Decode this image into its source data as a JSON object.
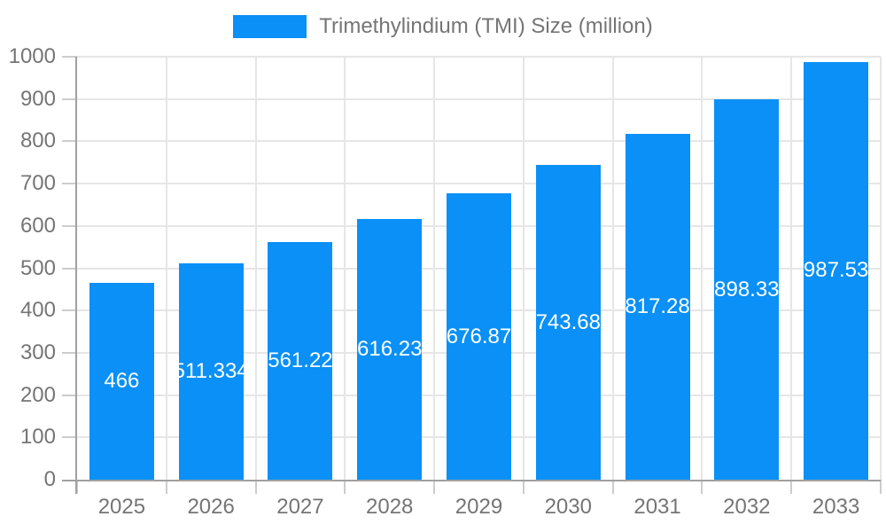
{
  "legend": {
    "label": "Trimethylindium (TMI) Size (million)"
  },
  "chart_data": {
    "type": "bar",
    "title": "",
    "categories": [
      "2025",
      "2026",
      "2027",
      "2028",
      "2029",
      "2030",
      "2031",
      "2032",
      "2033"
    ],
    "series": [
      {
        "name": "Trimethylindium (TMI) Size (million)",
        "values": [
          466,
          511.334,
          561.22,
          616.23,
          676.87,
          743.68,
          817.28,
          898.33,
          987.53
        ],
        "value_labels": [
          "466",
          "511.334",
          "561.22",
          "616.23",
          "676.87",
          "743.68",
          "817.28",
          "898.33",
          "987.53"
        ]
      }
    ],
    "xlabel": "",
    "ylabel": "",
    "ylim": [
      0,
      1000
    ],
    "ytick_step": 100,
    "ytick_labels": [
      "0",
      "100",
      "200",
      "300",
      "400",
      "500",
      "600",
      "700",
      "800",
      "900",
      "1000"
    ],
    "grid": true,
    "legend_position": "top-center",
    "bar_label_position": "center-inside"
  },
  "colors": {
    "bar": "#0a90f6",
    "axis_text": "#757575",
    "legend_text": "#757575",
    "gridline": "#e6e6e6",
    "axis_line": "#a0a0a0",
    "tick": "#cccccc",
    "bar_label": "#ffffff",
    "background": "#ffffff"
  }
}
